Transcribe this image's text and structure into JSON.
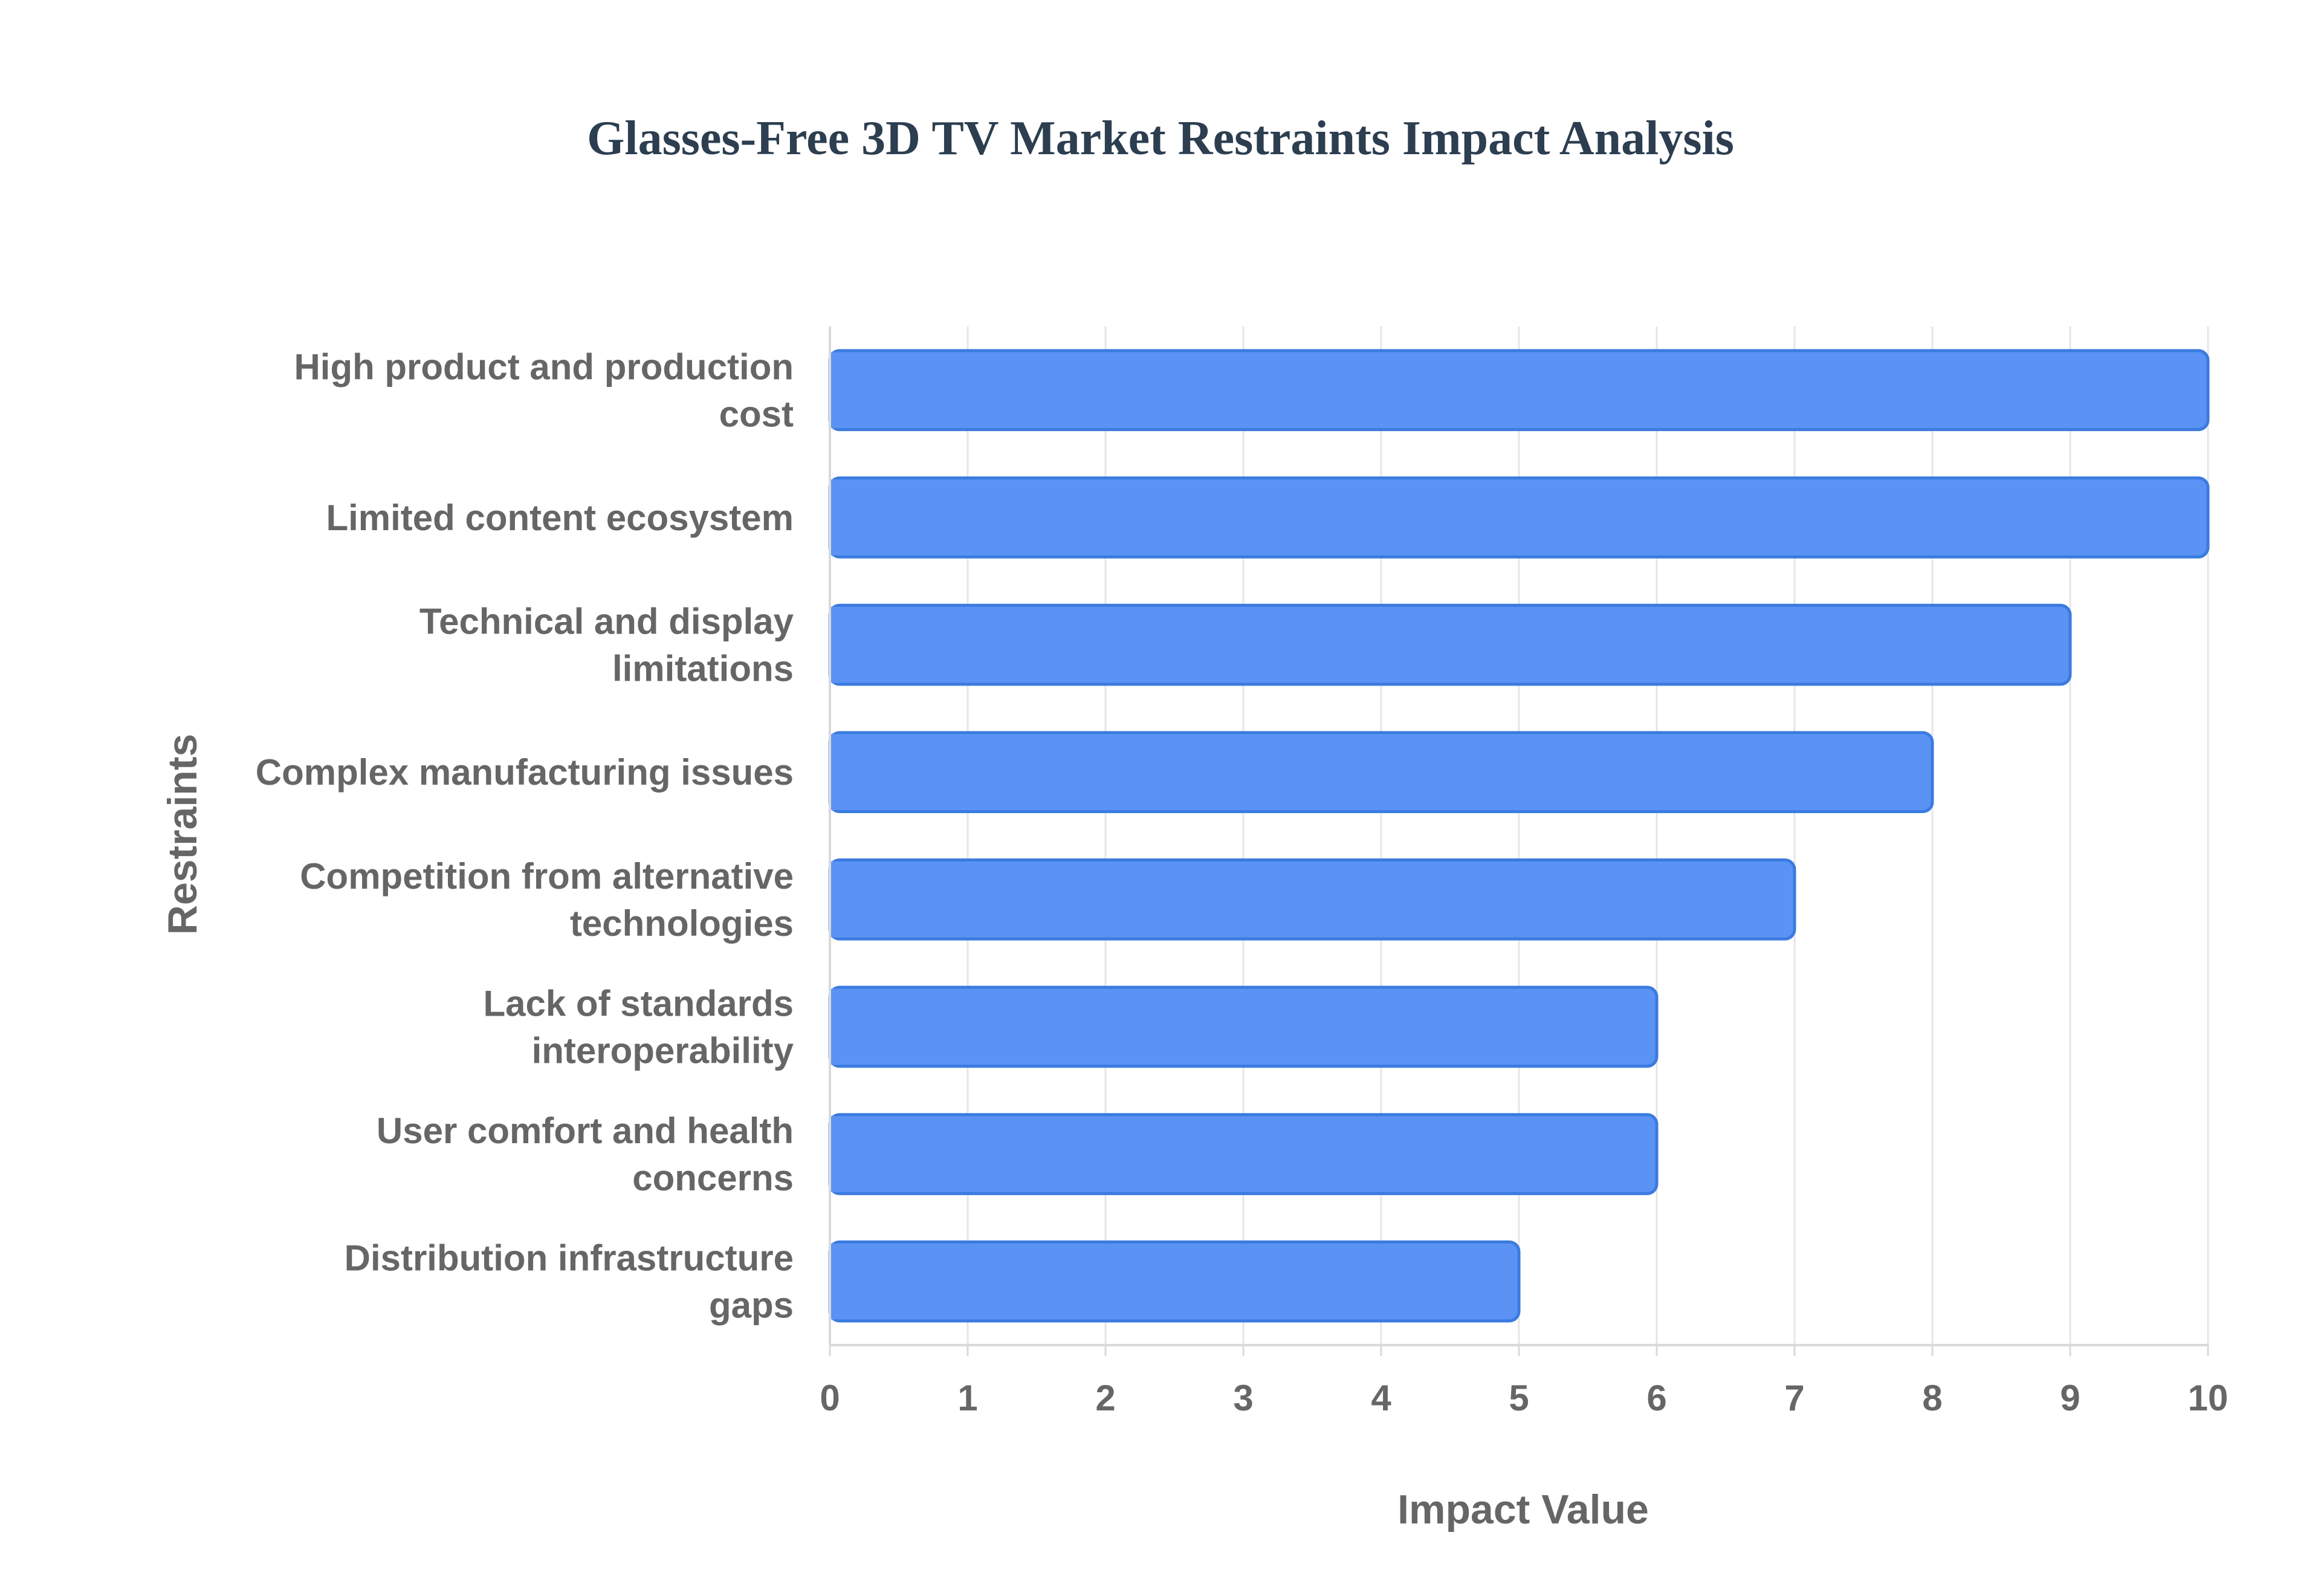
{
  "chart_data": {
    "type": "bar",
    "orientation": "horizontal",
    "title": "Glasses-Free 3D TV Market Restraints Impact Analysis",
    "xlabel": "Impact Value",
    "ylabel": "Restraints",
    "xlim": [
      0,
      10
    ],
    "x_ticks": [
      "0",
      "1",
      "2",
      "3",
      "4",
      "5",
      "6",
      "7",
      "8",
      "9",
      "10"
    ],
    "grid": true,
    "categories": [
      [
        "High product and production",
        "cost"
      ],
      [
        "Limited content ecosystem"
      ],
      [
        "Technical and display",
        "limitations"
      ],
      [
        "Complex manufacturing issues"
      ],
      [
        "Competition from alternative",
        "technologies"
      ],
      [
        "Lack of standards",
        "interoperability"
      ],
      [
        "User comfort and health",
        "concerns"
      ],
      [
        "Distribution infrastructure",
        "gaps"
      ]
    ],
    "values": [
      10,
      10,
      9,
      8,
      7,
      6,
      6,
      5
    ],
    "colors": {
      "bar_fill": "#5b93f5",
      "bar_stroke": "#3b7be0",
      "grid": "#e6e6e6",
      "axis": "#d9d9d9"
    }
  }
}
